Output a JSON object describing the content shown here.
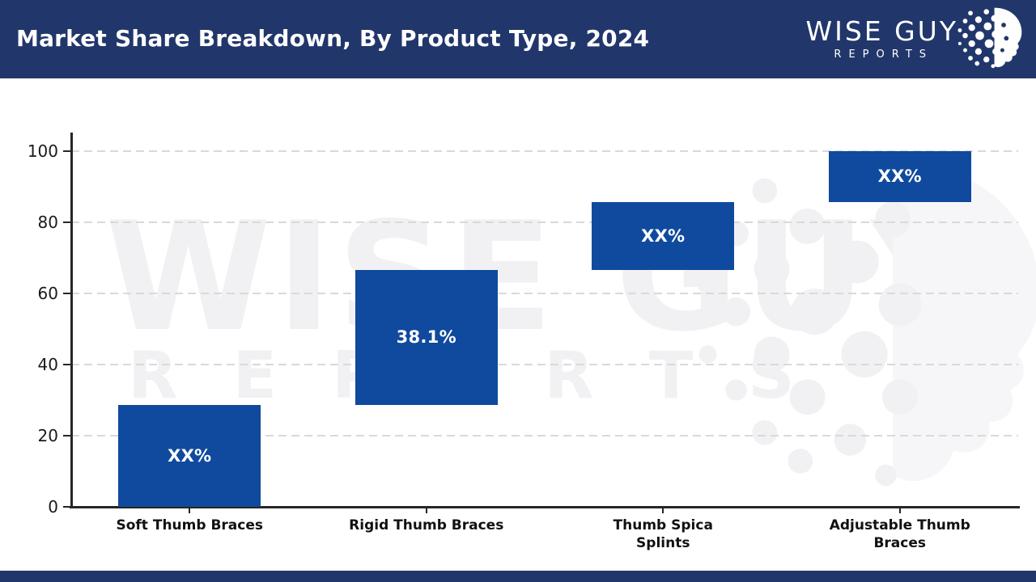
{
  "header": {
    "title": "Market Share Breakdown, By Product Type, 2024",
    "bg_color": "#21366b",
    "logo": {
      "line1": "WISE GUY",
      "line2": "REPORTS"
    }
  },
  "watermark": {
    "line1": "WISE GUY",
    "line2": "R E P O R T S"
  },
  "footer": {
    "bg_color": "#21366b"
  },
  "chart_data": {
    "type": "bar",
    "subtype": "stacked-waterfall",
    "title": "Market Share Breakdown, By Product Type, 2024",
    "categories": [
      "Soft Thumb Braces",
      "Rigid Thumb Braces",
      "Thumb Spica Splints",
      "Adjustable Thumb Braces"
    ],
    "category_lines": [
      [
        "Soft Thumb Braces"
      ],
      [
        "Rigid Thumb Braces"
      ],
      [
        "Thumb Spica",
        "Splints"
      ],
      [
        "Adjustable Thumb",
        "Braces"
      ]
    ],
    "segments": [
      {
        "category": "Soft Thumb Braces",
        "start": 0,
        "end": 28.6,
        "value": 28.6,
        "label": "XX%"
      },
      {
        "category": "Rigid Thumb Braces",
        "start": 28.6,
        "end": 66.7,
        "value": 38.1,
        "label": "38.1%"
      },
      {
        "category": "Thumb Spica Splints",
        "start": 66.7,
        "end": 85.7,
        "value": 19.0,
        "label": "XX%"
      },
      {
        "category": "Adjustable Thumb Braces",
        "start": 85.7,
        "end": 100,
        "value": 14.3,
        "label": "XX%"
      }
    ],
    "ylim": [
      0,
      100
    ],
    "yticks": [
      0,
      20,
      40,
      60,
      80,
      100
    ],
    "xlabel": "",
    "ylabel": "",
    "grid": "dashed-horizontal",
    "legend": "none",
    "colors": {
      "bar": "#104a9e",
      "bar_label": "#ffffff",
      "axis": "#262626",
      "grid": "#d9d9d9",
      "tick_label": "#1a1a1a",
      "category_label": "#111111",
      "title": "#ffffff",
      "watermark": "#f1f1f3"
    }
  }
}
